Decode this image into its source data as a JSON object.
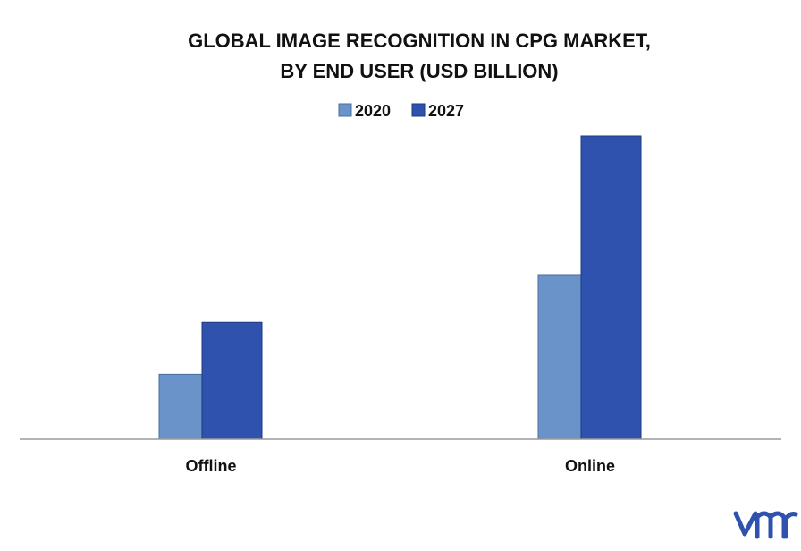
{
  "chart_data": {
    "type": "bar",
    "title_lines": [
      "GLOBAL IMAGE RECOGNITION IN CPG MARKET,",
      "BY END USER (USD BILLION)"
    ],
    "categories": [
      "Offline",
      "Online"
    ],
    "series": [
      {
        "name": "2020",
        "values": [
          0.75,
          1.9
        ],
        "color": "#6a93c9"
      },
      {
        "name": "2027",
        "values": [
          1.35,
          3.5
        ],
        "color": "#2e52ad"
      }
    ],
    "ylim": [
      0,
      3.5
    ],
    "grid": false,
    "legend_position": "top-center"
  },
  "logo": {
    "text": "vmr",
    "color": "#2e52ad"
  }
}
